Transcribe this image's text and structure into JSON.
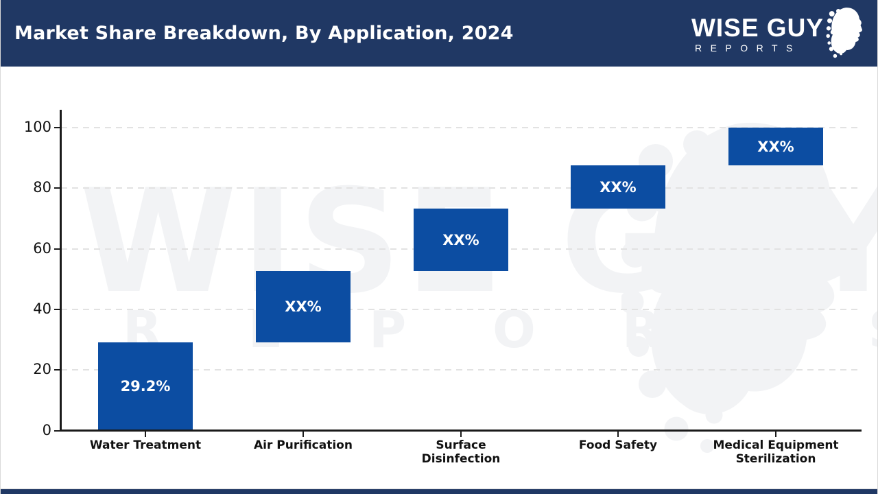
{
  "header": {
    "title": "Market Share Breakdown, By Application, 2024",
    "logo": {
      "line1": "WISE GUY",
      "line2": "REPORTS"
    }
  },
  "watermark": {
    "line1": "WISE GUY",
    "line2": "R E P O R T S"
  },
  "colors": {
    "header_bg": "#203864",
    "footer_bg": "#203864",
    "bar": "#0C4DA2",
    "bar_label_text": "#ffffff",
    "axis": "#1a1a1a",
    "gridline": "#e2e2e2",
    "watermark": "#f2f3f5"
  },
  "chart_data": {
    "type": "bar",
    "subtype": "waterfall-stacked-market-share",
    "title": "Market Share Breakdown, By Application, 2024",
    "xlabel": "",
    "ylabel": "",
    "ylim": [
      0,
      105
    ],
    "y_ticks": [
      0,
      20,
      40,
      60,
      80,
      100
    ],
    "grid": "horizontal-dashed",
    "legend": "none",
    "categories": [
      "Water Treatment",
      "Air Purification",
      "Surface\nDisinfection",
      "Food Safety",
      "Medical Equipment\nSterilization"
    ],
    "segments": [
      {
        "category": "Water Treatment",
        "start": 0,
        "end": 29.2,
        "label": "29.2%"
      },
      {
        "category": "Air Purification",
        "start": 29.2,
        "end": 52.6,
        "label": "XX%"
      },
      {
        "category": "Surface Disinfection",
        "start": 52.6,
        "end": 73.2,
        "label": "XX%"
      },
      {
        "category": "Food Safety",
        "start": 73.2,
        "end": 87.5,
        "label": "XX%"
      },
      {
        "category": "Medical Equipment Sterilization",
        "start": 87.5,
        "end": 100,
        "label": "XX%"
      }
    ]
  }
}
